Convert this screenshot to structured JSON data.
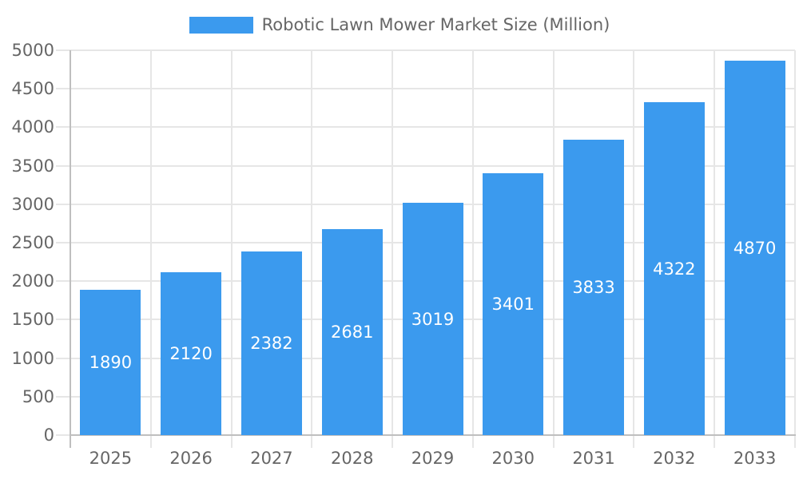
{
  "legend": {
    "label": "Robotic Lawn Mower Market Size (Million)",
    "position": "top"
  },
  "colors": {
    "bar": "#3B9AEE",
    "grid": "#E6E6E6",
    "axis": "#BFBFBF",
    "tick_text": "#666666",
    "bar_label_text": "#FFFFFF",
    "background": "#FFFFFF"
  },
  "chart_data": {
    "type": "bar",
    "title": "Robotic Lawn Mower Market Size (Million)",
    "categories": [
      "2025",
      "2026",
      "2027",
      "2028",
      "2029",
      "2030",
      "2031",
      "2032",
      "2033"
    ],
    "values": [
      1890,
      2120,
      2382,
      2681,
      3019,
      3401,
      3833,
      4322,
      4870
    ],
    "xlabel": "",
    "ylabel": "",
    "ylim": [
      0,
      5000
    ],
    "yticks": [
      0,
      500,
      1000,
      1500,
      2000,
      2500,
      3000,
      3500,
      4000,
      4500,
      5000
    ],
    "grid": true,
    "legend_position": "top",
    "bar_label_position": "center"
  }
}
